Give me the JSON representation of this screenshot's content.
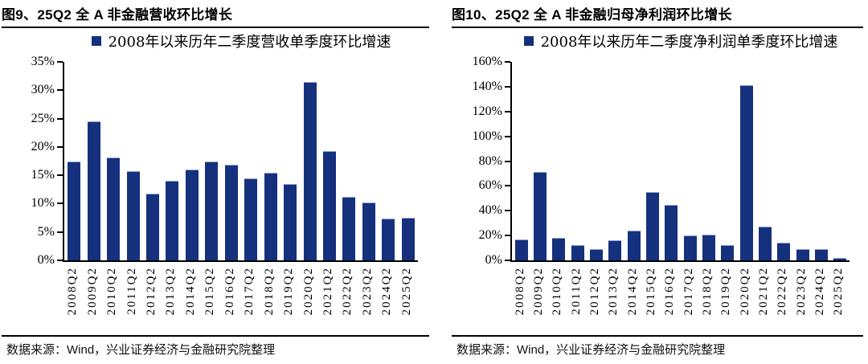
{
  "panels": [
    {
      "title": "图9、25Q2 全 A 非金融营收环比增长",
      "source": "数据来源：Wind，兴业证券经济与金融研究院整理"
    },
    {
      "title": "图10、25Q2 全 A 非金融归母净利润环比增长",
      "source": "数据来源：Wind，兴业证券经济与金融研究院整理"
    }
  ],
  "colors": {
    "bar": "#15317e",
    "axis": "#000000",
    "text": "#000000"
  },
  "chart_data": [
    {
      "type": "bar",
      "title": "25Q2 全 A 非金融营收环比增长",
      "legend": "2008年以来历年二季度营收单季度环比增速",
      "legend_position": "top",
      "grid": false,
      "categories": [
        "2008Q2",
        "2009Q2",
        "2010Q2",
        "2011Q2",
        "2012Q2",
        "2013Q2",
        "2014Q2",
        "2015Q2",
        "2016Q2",
        "2017Q2",
        "2018Q2",
        "2019Q2",
        "2020Q2",
        "2021Q2",
        "2022Q2",
        "2023Q2",
        "2024Q2",
        "2025Q2"
      ],
      "values": [
        17.5,
        24.5,
        18.2,
        15.7,
        11.8,
        14.0,
        16.0,
        17.4,
        16.9,
        14.4,
        15.4,
        13.4,
        31.4,
        19.3,
        11.2,
        10.2,
        7.3,
        7.5
      ],
      "ylabel": "",
      "xlabel": "",
      "ylim": [
        0,
        35
      ],
      "ytick_step": 5,
      "ytick_suffix": "%"
    },
    {
      "type": "bar",
      "title": "25Q2 全 A 非金融归母净利润环比增长",
      "legend": "2008年以来历年二季度净利润单季度环比增速",
      "legend_position": "top",
      "grid": false,
      "categories": [
        "2008Q2",
        "2009Q2",
        "2010Q2",
        "2011Q2",
        "2012Q2",
        "2013Q2",
        "2014Q2",
        "2015Q2",
        "2016Q2",
        "2017Q2",
        "2018Q2",
        "2019Q2",
        "2020Q2",
        "2021Q2",
        "2022Q2",
        "2023Q2",
        "2024Q2",
        "2025Q2"
      ],
      "values": [
        17,
        71,
        18,
        12,
        9,
        16,
        24,
        55,
        45,
        20,
        21,
        12,
        141,
        27,
        14,
        9,
        9,
        2
      ],
      "ylabel": "",
      "xlabel": "",
      "ylim": [
        0,
        160
      ],
      "ytick_step": 20,
      "ytick_suffix": "%"
    }
  ]
}
